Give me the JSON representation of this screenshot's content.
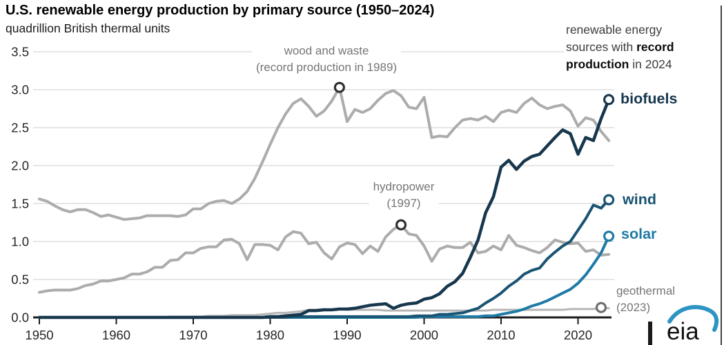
{
  "page": {
    "title": "U.S. renewable energy production by primary source (1950–2024)",
    "subtitle": "quadrillion British thermal units"
  },
  "annotations": {
    "wood": {
      "line1": "wood and waste",
      "line2": "(record production in 1989)"
    },
    "hydro": {
      "line1": "hydropower",
      "line2": "(1997)"
    },
    "record2024": {
      "line1": "renewable energy",
      "line2_regular": "sources with ",
      "line2_bold": "record",
      "line3_bold": "production",
      "line3_regular": " in 2024"
    },
    "geothermal": {
      "line1": "geothermal",
      "line2": "(2023)"
    }
  },
  "end_labels": {
    "biofuels": "biofuels",
    "wind": "wind",
    "solar": "solar"
  },
  "logo": {
    "text": "eia",
    "swoosh_color": "#2E94C3"
  },
  "chart_data": {
    "type": "line",
    "title": "U.S. renewable energy production by primary source (1950–2024)",
    "ylabel": "quadrillion British thermal units",
    "xlabel": "",
    "x_start": 1950,
    "x_end": 2024,
    "xticks": [
      1950,
      1960,
      1970,
      1980,
      1990,
      2000,
      2010,
      2020
    ],
    "yticks": [
      0.0,
      0.5,
      1.0,
      1.5,
      2.0,
      2.5,
      3.0,
      3.5
    ],
    "ylim": [
      0,
      3.5
    ],
    "grid": "horizontal",
    "grid_color": "#CDCDCD",
    "axis_color": "#1A1A1A",
    "tick_label_color": "#262626",
    "legend_position": "right-end-labels",
    "series": [
      {
        "id": "wood-and-waste",
        "name": "wood and waste",
        "color": "#ACACAC",
        "width": 4,
        "record": {
          "year": 1989,
          "value": 3.03,
          "marker_color": "#2F2F2F"
        },
        "values": [
          1.56,
          1.53,
          1.47,
          1.42,
          1.39,
          1.42,
          1.42,
          1.38,
          1.33,
          1.35,
          1.32,
          1.29,
          1.3,
          1.31,
          1.34,
          1.34,
          1.34,
          1.34,
          1.33,
          1.35,
          1.43,
          1.43,
          1.5,
          1.53,
          1.54,
          1.5,
          1.56,
          1.66,
          1.83,
          2.05,
          2.28,
          2.5,
          2.68,
          2.82,
          2.88,
          2.78,
          2.65,
          2.72,
          2.85,
          3.03,
          2.58,
          2.74,
          2.7,
          2.75,
          2.86,
          2.95,
          2.99,
          2.92,
          2.77,
          2.75,
          2.9,
          2.37,
          2.39,
          2.38,
          2.5,
          2.6,
          2.62,
          2.6,
          2.65,
          2.58,
          2.7,
          2.73,
          2.7,
          2.82,
          2.89,
          2.8,
          2.75,
          2.78,
          2.8,
          2.72,
          2.52,
          2.63,
          2.6,
          2.45,
          2.33
        ]
      },
      {
        "id": "hydropower",
        "name": "hydropower",
        "color": "#ACACAC",
        "width": 4,
        "record": {
          "year": 1997,
          "value": 1.22,
          "marker_color": "#2F2F2F"
        },
        "values": [
          0.33,
          0.35,
          0.36,
          0.36,
          0.36,
          0.38,
          0.42,
          0.44,
          0.48,
          0.48,
          0.5,
          0.52,
          0.57,
          0.57,
          0.6,
          0.66,
          0.66,
          0.75,
          0.76,
          0.85,
          0.85,
          0.91,
          0.93,
          0.93,
          1.02,
          1.03,
          0.97,
          0.76,
          0.96,
          0.96,
          0.95,
          0.89,
          1.06,
          1.13,
          1.11,
          0.97,
          0.99,
          0.85,
          0.77,
          0.93,
          0.98,
          0.96,
          0.84,
          0.94,
          0.87,
          1.06,
          1.16,
          1.22,
          1.1,
          1.08,
          0.94,
          0.74,
          0.9,
          0.94,
          0.92,
          0.92,
          0.99,
          0.85,
          0.87,
          0.94,
          0.89,
          1.08,
          0.95,
          0.92,
          0.88,
          0.85,
          0.92,
          1.02,
          0.99,
          0.97,
          0.98,
          0.87,
          0.89,
          0.82,
          0.83
        ]
      },
      {
        "id": "geothermal",
        "name": "geothermal",
        "color": "#B6B6B6",
        "width": 3,
        "record": {
          "year": 2023,
          "value": 0.13,
          "marker_color": "#6F6F6F"
        },
        "values": [
          0,
          0,
          0,
          0,
          0,
          0,
          0,
          0,
          0,
          0,
          0.0,
          0.0,
          0.0,
          0.0,
          0.0,
          0.0,
          0.0,
          0.01,
          0.01,
          0.01,
          0.01,
          0.01,
          0.02,
          0.02,
          0.02,
          0.03,
          0.03,
          0.03,
          0.03,
          0.04,
          0.05,
          0.06,
          0.06,
          0.07,
          0.08,
          0.1,
          0.1,
          0.11,
          0.1,
          0.11,
          0.1,
          0.1,
          0.1,
          0.1,
          0.1,
          0.09,
          0.09,
          0.09,
          0.09,
          0.09,
          0.09,
          0.09,
          0.09,
          0.09,
          0.09,
          0.09,
          0.09,
          0.09,
          0.09,
          0.1,
          0.1,
          0.1,
          0.1,
          0.1,
          0.1,
          0.1,
          0.1,
          0.1,
          0.1,
          0.11,
          0.11,
          0.11,
          0.11,
          0.13,
          0.12
        ]
      },
      {
        "id": "solar",
        "name": "solar",
        "color": "#1F7AA6",
        "width": 4,
        "record": {
          "year": 2024,
          "value": 1.07,
          "marker_color": "#1F7AA6"
        },
        "values": [
          0,
          0,
          0,
          0,
          0,
          0,
          0,
          0,
          0,
          0,
          0,
          0,
          0,
          0,
          0,
          0,
          0,
          0,
          0,
          0,
          0,
          0,
          0,
          0,
          0,
          0,
          0,
          0,
          0,
          0,
          0,
          0,
          0,
          0,
          0,
          0,
          0,
          0,
          0,
          0,
          0,
          0,
          0,
          0,
          0,
          0,
          0,
          0,
          0,
          0,
          0.01,
          0.01,
          0.01,
          0.01,
          0.01,
          0.01,
          0.01,
          0.01,
          0.02,
          0.02,
          0.04,
          0.06,
          0.08,
          0.11,
          0.15,
          0.18,
          0.22,
          0.27,
          0.32,
          0.37,
          0.45,
          0.56,
          0.7,
          0.85,
          1.07
        ]
      },
      {
        "id": "wind",
        "name": "wind",
        "color": "#1A5472",
        "width": 4,
        "record": {
          "year": 2024,
          "value": 1.55,
          "marker_color": "#1A5472"
        },
        "values": [
          0,
          0,
          0,
          0,
          0,
          0,
          0,
          0,
          0,
          0,
          0,
          0,
          0,
          0,
          0,
          0,
          0,
          0,
          0,
          0,
          0,
          0,
          0,
          0,
          0,
          0,
          0,
          0,
          0,
          0,
          0,
          0,
          0,
          0.01,
          0.01,
          0.01,
          0.01,
          0.01,
          0.01,
          0.01,
          0.01,
          0.01,
          0.01,
          0.01,
          0.01,
          0.01,
          0.01,
          0.01,
          0.01,
          0.02,
          0.02,
          0.02,
          0.04,
          0.04,
          0.05,
          0.06,
          0.09,
          0.12,
          0.19,
          0.25,
          0.32,
          0.41,
          0.48,
          0.57,
          0.62,
          0.65,
          0.77,
          0.86,
          0.94,
          1.0,
          1.15,
          1.3,
          1.48,
          1.44,
          1.55
        ]
      },
      {
        "id": "biofuels",
        "name": "biofuels",
        "color": "#17374D",
        "width": 4.5,
        "record": {
          "year": 2024,
          "value": 2.87,
          "marker_color": "#17374D"
        },
        "values": [
          0,
          0,
          0,
          0,
          0,
          0,
          0,
          0,
          0,
          0,
          0,
          0,
          0,
          0,
          0,
          0,
          0,
          0,
          0,
          0,
          0,
          0,
          0,
          0,
          0,
          0,
          0,
          0,
          0,
          0,
          0.01,
          0.01,
          0.02,
          0.03,
          0.04,
          0.09,
          0.09,
          0.1,
          0.1,
          0.11,
          0.11,
          0.12,
          0.14,
          0.16,
          0.17,
          0.18,
          0.12,
          0.16,
          0.18,
          0.19,
          0.24,
          0.26,
          0.31,
          0.41,
          0.47,
          0.58,
          0.79,
          1.02,
          1.38,
          1.59,
          1.98,
          2.07,
          1.95,
          2.06,
          2.12,
          2.15,
          2.26,
          2.37,
          2.47,
          2.42,
          2.15,
          2.37,
          2.33,
          2.62,
          2.87
        ]
      }
    ]
  }
}
